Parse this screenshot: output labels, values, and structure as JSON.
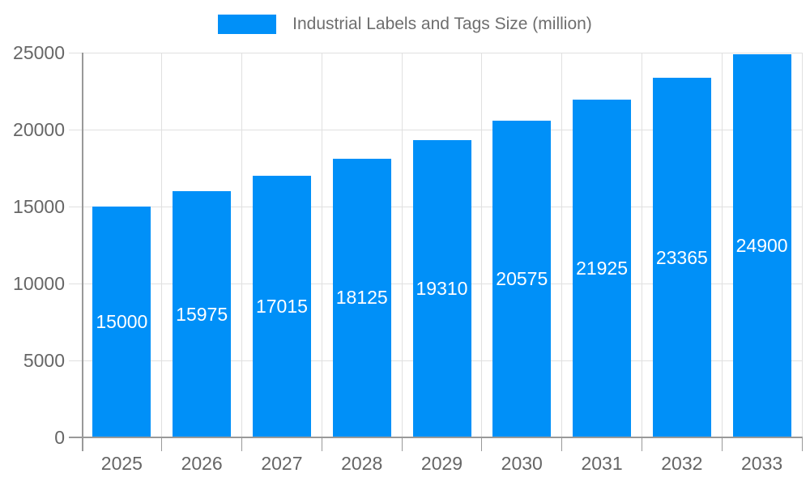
{
  "colors": {
    "bar": "#0090f8",
    "axis": "#999999",
    "grid": "#e0e0e0",
    "label": "#666666",
    "legend_text": "#6e6e6e",
    "bar_label": "#ffffff",
    "background": "#ffffff"
  },
  "legend": {
    "label": "Industrial Labels and Tags Size (million)"
  },
  "chart_data": {
    "type": "bar",
    "title": "Industrial Labels and Tags Size (million)",
    "categories": [
      "2025",
      "2026",
      "2027",
      "2028",
      "2029",
      "2030",
      "2031",
      "2032",
      "2033"
    ],
    "values": [
      15000,
      15975,
      17015,
      18125,
      19310,
      20575,
      21925,
      23365,
      24900
    ],
    "series": [
      {
        "name": "Industrial Labels and Tags Size (million)",
        "values": [
          15000,
          15975,
          17015,
          18125,
          19310,
          20575,
          21925,
          23365,
          24900
        ]
      }
    ],
    "xlabel": "",
    "ylabel": "",
    "ylim": [
      0,
      25000
    ],
    "yticks": [
      0,
      5000,
      10000,
      15000,
      20000,
      25000
    ],
    "grid": true,
    "legend_position": "top",
    "bar_value_labels": "inside-center"
  }
}
